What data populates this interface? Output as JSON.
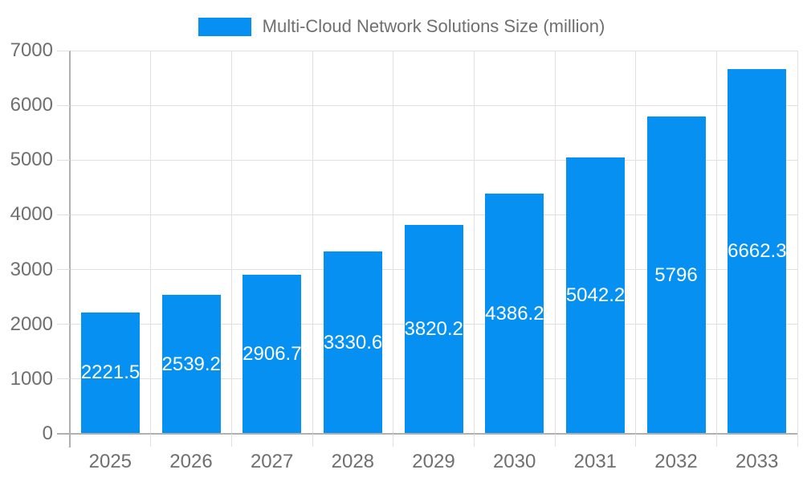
{
  "legend": {
    "label": "Multi-Cloud Network Solutions Size (million)"
  },
  "chart_data": {
    "type": "bar",
    "title": "Multi-Cloud Network Solutions Size (million)",
    "categories": [
      "2025",
      "2026",
      "2027",
      "2028",
      "2029",
      "2030",
      "2031",
      "2032",
      "2033"
    ],
    "values": [
      2221.5,
      2539.2,
      2906.7,
      3330.6,
      3820.2,
      4386.2,
      5042.2,
      5796,
      6662.3
    ],
    "value_labels": [
      "2221.5",
      "2539.2",
      "2906.7",
      "3330.6",
      "3820.2",
      "4386.2",
      "5042.2",
      "5796",
      "6662.3"
    ],
    "xlabel": "",
    "ylabel": "",
    "ylim": [
      0,
      7000
    ],
    "yticks": [
      0,
      1000,
      2000,
      3000,
      4000,
      5000,
      6000,
      7000
    ],
    "grid": true,
    "legend_position": "top-center",
    "colors": {
      "bar": "#0690f2",
      "grid": "#e0e0e0",
      "axis": "#b0b0b0",
      "tick_text": "#6f6f6f",
      "value_text": "#ffffff"
    }
  }
}
